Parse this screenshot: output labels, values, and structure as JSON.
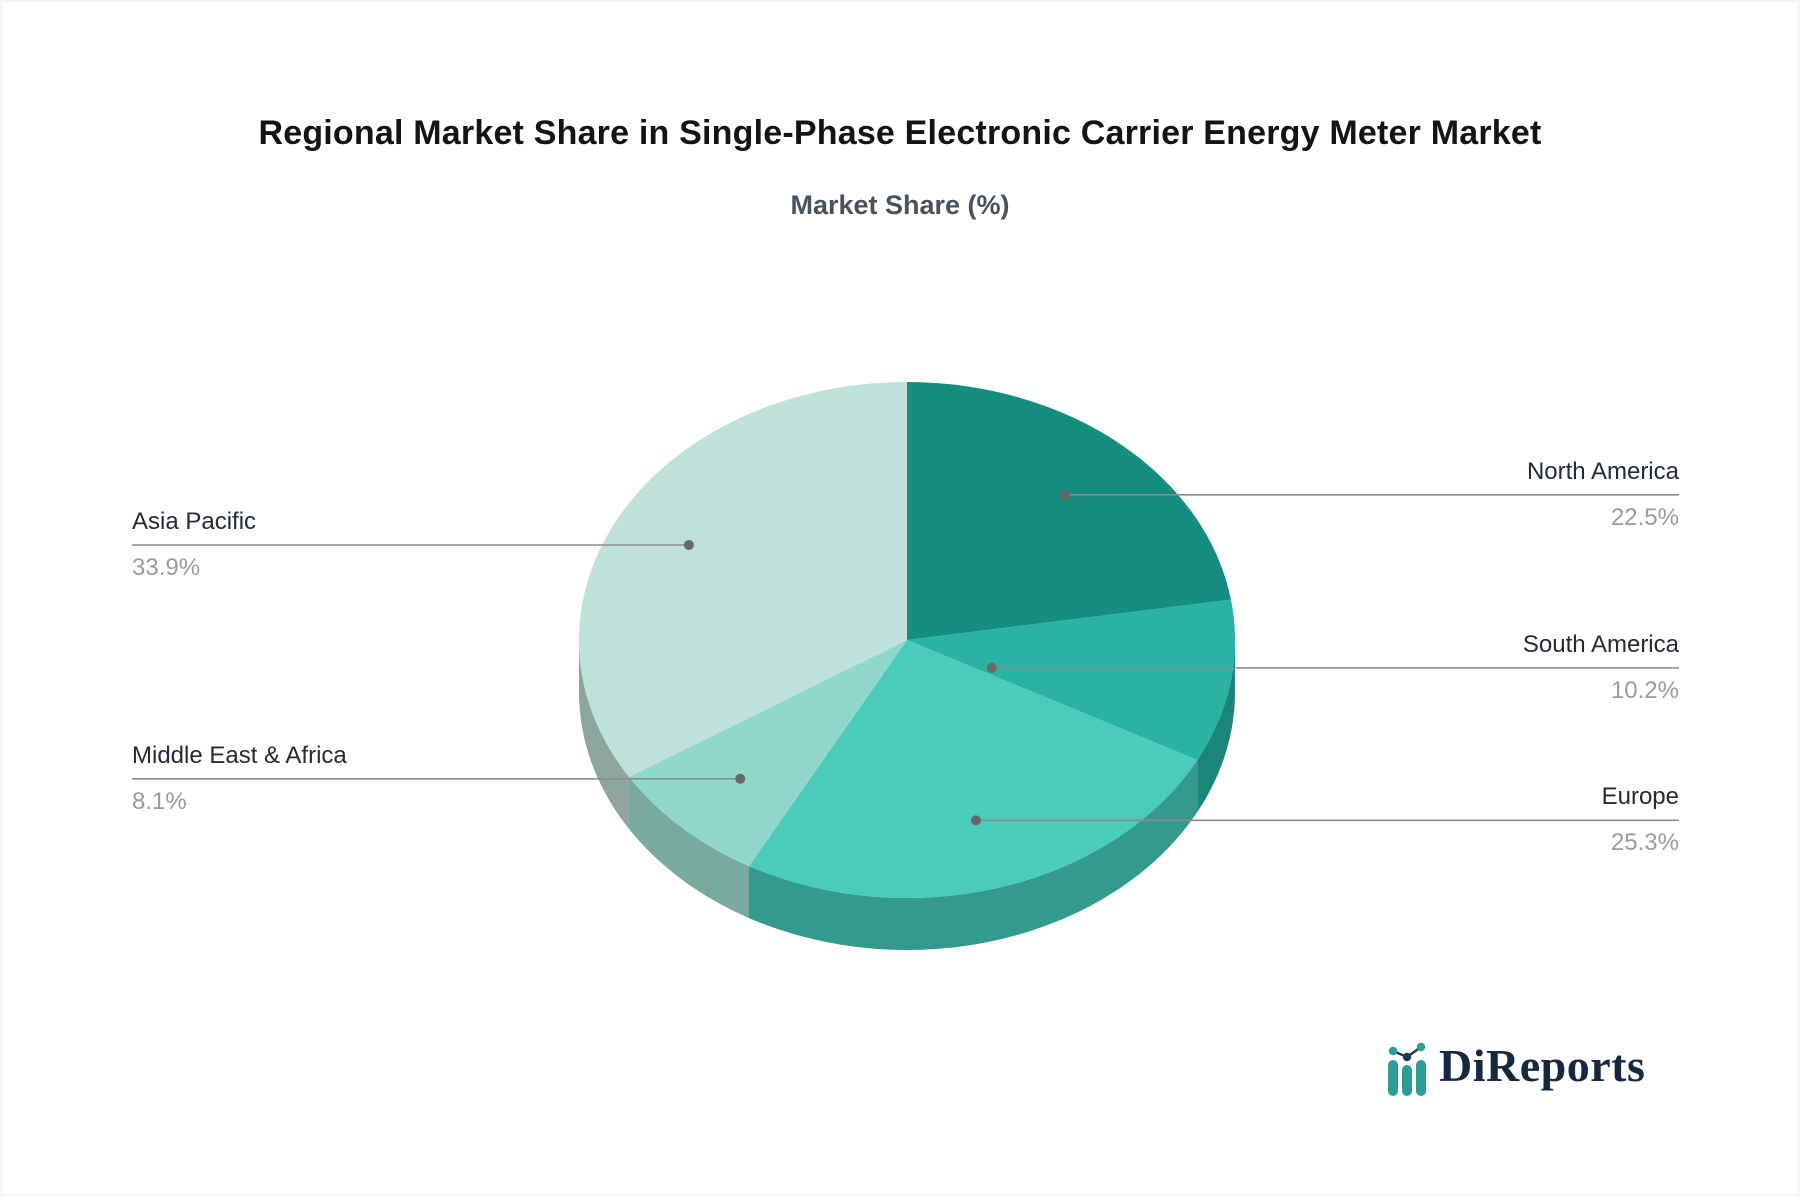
{
  "chart_data": {
    "type": "pie",
    "style": "3d-pie",
    "title": "Regional Market Share in Single-Phase Electronic Carrier Energy Meter Market",
    "subtitle": "Market Share (%)",
    "unit": "%",
    "labels": [
      "North America",
      "South America",
      "Europe",
      "Middle East & Africa",
      "Asia Pacific"
    ],
    "values": [
      22.5,
      10.2,
      25.3,
      8.1,
      33.9
    ],
    "value_labels": [
      "22.5%",
      "10.2%",
      "25.3%",
      "8.1%",
      "33.9%"
    ],
    "colors": [
      "#158d81",
      "#2ab2a3",
      "#4acbbc",
      "#90d8cb",
      "#bee2da"
    ],
    "side_colors": [
      "#10695f",
      "#1b857a",
      "#349a8e",
      "#78aaa0",
      "#8ca69f"
    ],
    "start_angle_deg": 0,
    "clockwise": true,
    "legend_position": "callout-labels",
    "callout_line_color": "#8c8c8c",
    "callout_dot_color": "#676767",
    "label_color": "#232c35",
    "value_color": "#9b9b9b"
  },
  "branding": {
    "logo_text": "DiReports",
    "logo_icon": "bar-line-chart-icon",
    "logo_text_color": "#15283f",
    "logo_bar_color": "#2d9e96",
    "logo_line_color": "#1b3a52"
  }
}
